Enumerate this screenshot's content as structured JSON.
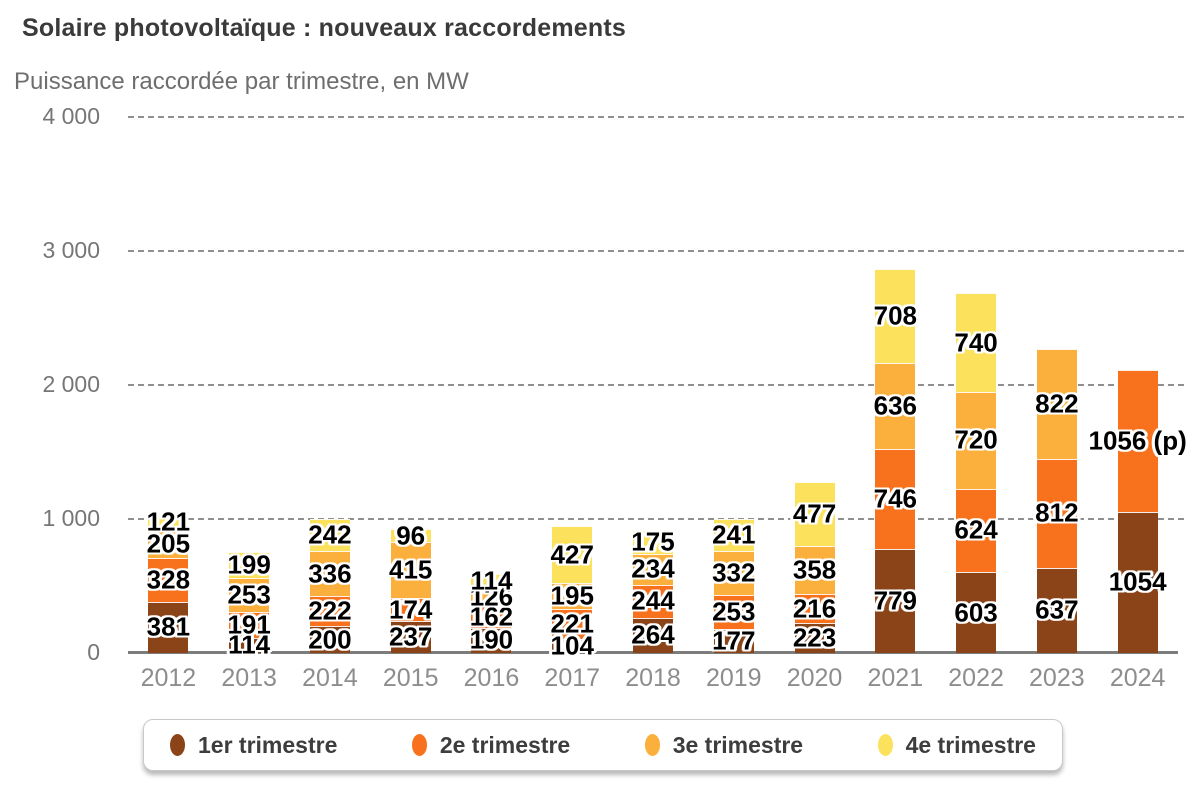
{
  "header": {
    "title": "Solaire photovoltaïque : nouveaux raccordements",
    "subtitle": "Puissance raccordée par trimestre, en MW"
  },
  "chart_data": {
    "type": "bar",
    "stacked": true,
    "title": "Solaire photovoltaïque : nouveaux raccordements",
    "subtitle": "Puissance raccordée par trimestre, en MW",
    "unit": "MW",
    "xlabel": "",
    "ylabel": "Puissance raccordée par trimestre, en MW",
    "ylim": [
      0,
      4000
    ],
    "grid": "dashed-horizontal",
    "legend_position": "bottom",
    "yticks": [
      {
        "value": 0,
        "label": "0"
      },
      {
        "value": 1000,
        "label": "1 000"
      },
      {
        "value": 2000,
        "label": "2 000"
      },
      {
        "value": 3000,
        "label": "3 000"
      },
      {
        "value": 4000,
        "label": "4 000"
      }
    ],
    "categories": [
      "2012",
      "2013",
      "2014",
      "2015",
      "2016",
      "2017",
      "2018",
      "2019",
      "2020",
      "2021",
      "2022",
      "2023",
      "2024"
    ],
    "series": [
      {
        "name": "1er trimestre",
        "color": "#8B4417",
        "values": [
          381,
          114,
          200,
          237,
          190,
          104,
          264,
          177,
          223,
          779,
          603,
          637,
          1054
        ],
        "labels": [
          "381",
          "114",
          "200",
          "237",
          "190",
          "104",
          "264",
          "177",
          "223",
          "779",
          "603",
          "637",
          "1054"
        ]
      },
      {
        "name": "2e trimestre",
        "color": "#F8711C",
        "values": [
          328,
          191,
          222,
          174,
          162,
          221,
          244,
          253,
          216,
          746,
          624,
          812,
          1056
        ],
        "labels": [
          "328",
          "191",
          "222",
          "174",
          "162",
          "221",
          "244",
          "253",
          "216",
          "746",
          "624",
          "812",
          "1056 (p)"
        ]
      },
      {
        "name": "3e trimestre",
        "color": "#FBAF3C",
        "values": [
          205,
          253,
          336,
          415,
          126,
          195,
          234,
          332,
          358,
          636,
          720,
          822,
          null
        ],
        "labels": [
          "205",
          "253",
          "336",
          "415",
          "126",
          "195",
          "234",
          "332",
          "358",
          "636",
          "720",
          "822",
          null
        ]
      },
      {
        "name": "4e trimestre",
        "color": "#FCE25C",
        "values": [
          121,
          199,
          242,
          96,
          114,
          427,
          175,
          241,
          477,
          708,
          740,
          null,
          null
        ],
        "labels": [
          "121",
          "199",
          "242",
          "96",
          "114",
          "427",
          "175",
          "241",
          "477",
          "708",
          "740",
          null,
          null
        ]
      }
    ]
  }
}
